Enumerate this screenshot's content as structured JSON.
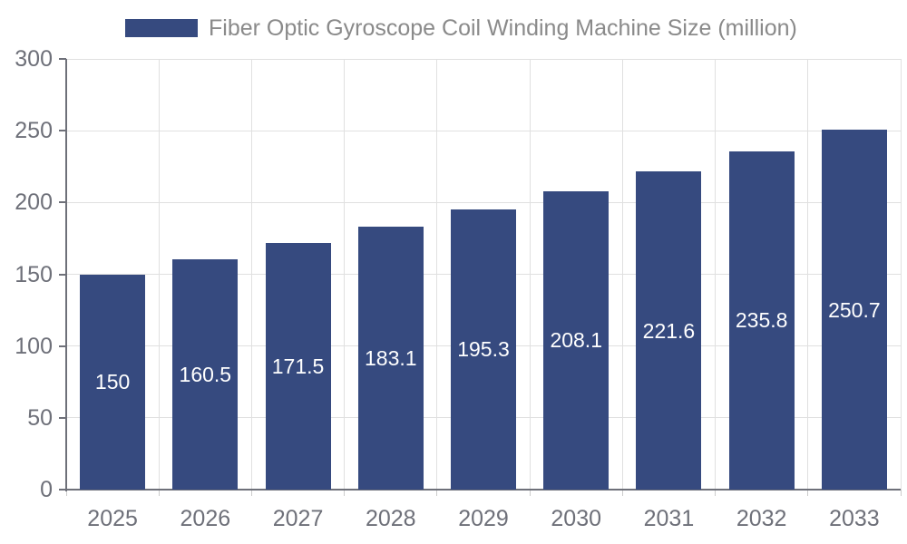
{
  "chart_data": {
    "type": "bar",
    "legend_label": "Fiber Optic Gyroscope Coil Winding Machine Size (million)",
    "categories": [
      "2025",
      "2026",
      "2027",
      "2028",
      "2029",
      "2030",
      "2031",
      "2032",
      "2033"
    ],
    "values": [
      150,
      160.5,
      171.5,
      183.1,
      195.3,
      208.1,
      221.6,
      235.8,
      250.7
    ],
    "value_labels": [
      "150",
      "160.5",
      "171.5",
      "183.1",
      "195.3",
      "208.1",
      "221.6",
      "235.8",
      "250.7"
    ],
    "ylim": [
      0,
      300
    ],
    "yticks": [
      0,
      50,
      100,
      150,
      200,
      250,
      300
    ],
    "grid": true,
    "legend_position": "top",
    "bar_color": "#364A7F",
    "value_label_color": "#ffffff",
    "axis_color": "#6E7079",
    "grid_color": "#E0E0E0",
    "boundary_tick_color": "#CCCCCC",
    "tick_label_color": "#6E7079",
    "legend_text_color": "#8A8A8A"
  }
}
